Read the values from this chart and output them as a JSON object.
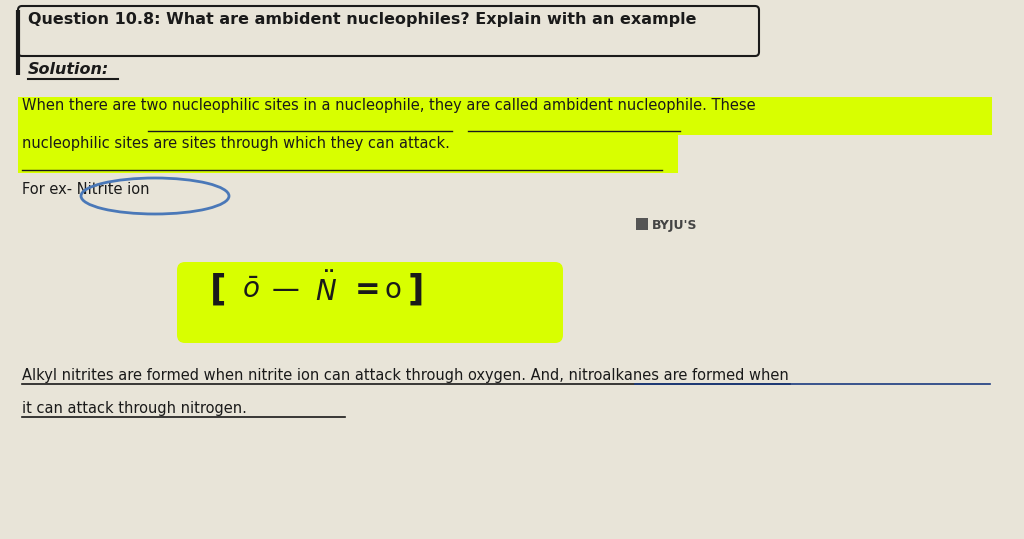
{
  "bg_color": "#c8c4b8",
  "paper_color": "#e8e4d8",
  "title": "Question 10.8: What are ambident nucleophiles? Explain with an example",
  "solution_label": "Solution:",
  "line1": "When there are two nucleophilic sites in a nucleophile, they are called ambident nucleophile. These",
  "line2": "nucleophilic sites are sites through which they can attack.",
  "for_ex": "For ex- Nitrite ion",
  "byju": "BYJU'S",
  "bottom1": "Alkyl nitrites are formed when nitrite ion can attack through oxygen. And, nitroalkanes are formed when",
  "bottom2": "it can attack through nitrogen.",
  "highlight_yellow": "#d8ff00",
  "highlight_blue_circle_color": "#4a78b8",
  "text_color": "#1a1a1a",
  "underline_color": "#1a3a80",
  "title_fontsize": 11.5,
  "body_fontsize": 10.5,
  "formula_fontsize": 20
}
